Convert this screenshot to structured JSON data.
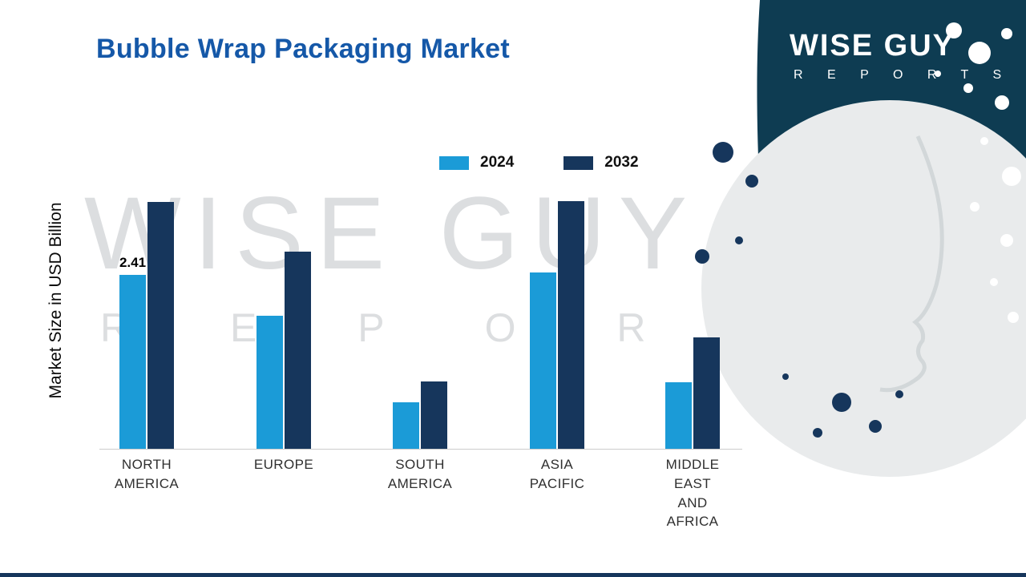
{
  "page": {
    "title": "Bubble Wrap Packaging Market"
  },
  "logo": {
    "line1": "WISE GUY",
    "line2": "R E P O R T S"
  },
  "watermark": {
    "line1": "WISE GUY",
    "line2": "R E P O R T S"
  },
  "chart_data": {
    "type": "bar",
    "title": "Bubble Wrap Packaging Market",
    "xlabel": "",
    "ylabel": "Market Size in USD Billion",
    "ylim": [
      0,
      3.6
    ],
    "grid": false,
    "legend_position": "top",
    "categories": [
      "NORTH AMERICA",
      "EUROPE",
      "SOUTH AMERICA",
      "ASIA PACIFIC",
      "MIDDLE EAST AND AFRICA"
    ],
    "category_lines": [
      [
        "NORTH",
        "AMERICA"
      ],
      [
        "EUROPE"
      ],
      [
        "SOUTH",
        "AMERICA"
      ],
      [
        "ASIA",
        "PACIFIC"
      ],
      [
        "MIDDLE",
        "EAST",
        "AND",
        "AFRICA"
      ]
    ],
    "series": [
      {
        "name": "2024",
        "color": "#1b9bd7",
        "values": [
          2.41,
          1.85,
          0.65,
          2.45,
          0.92
        ]
      },
      {
        "name": "2032",
        "color": "#16365c",
        "values": [
          3.42,
          2.73,
          0.93,
          3.43,
          1.55
        ]
      }
    ],
    "data_labels": [
      "2.41",
      "",
      "",
      "",
      ""
    ]
  }
}
